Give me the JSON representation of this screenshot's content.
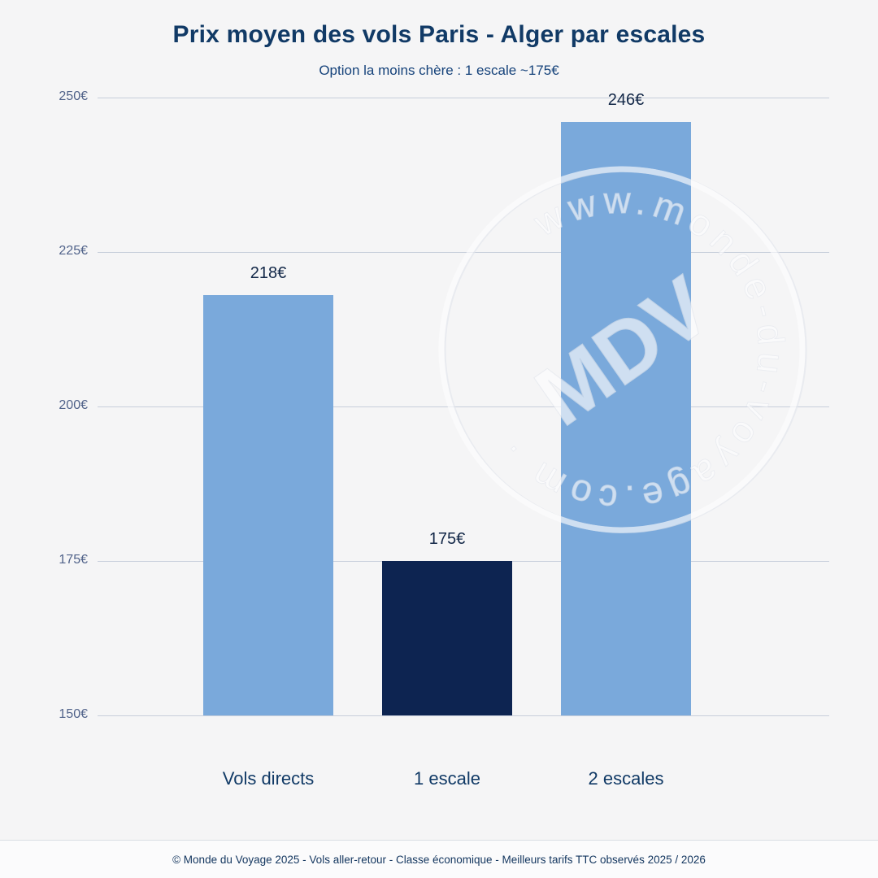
{
  "chart_data": {
    "type": "bar",
    "title": "Prix moyen des vols Paris - Alger par escales",
    "subtitle": "Option la moins chère : 1 escale ~175€",
    "categories": [
      "Vols directs",
      "1 escale",
      "2 escales"
    ],
    "values": [
      218,
      175,
      246
    ],
    "value_labels": [
      "218€",
      "175€",
      "246€"
    ],
    "bar_colors": [
      "#7aa9db",
      "#0d2451",
      "#7aa9db"
    ],
    "ylim": [
      150,
      250
    ],
    "yticks": [
      150,
      175,
      200,
      225,
      250
    ],
    "ytick_labels": [
      "150€",
      "175€",
      "200€",
      "225€",
      "250€"
    ],
    "grid": true,
    "legend_position": "none",
    "xlabel": "",
    "ylabel": ""
  },
  "watermark": {
    "circle_text": "www.monde-du-voyage.com ·",
    "badge": "MDV"
  },
  "footer": {
    "text": "© Monde du Voyage 2025 - Vols aller-retour - Classe économique - Meilleurs tarifs TTC observés 2025 / 2026"
  },
  "colors": {
    "background": "#f5f5f6",
    "title": "#113a66",
    "gridline": "#c7cedb",
    "bar_light": "#7aa9db",
    "bar_dark": "#0d2451"
  }
}
